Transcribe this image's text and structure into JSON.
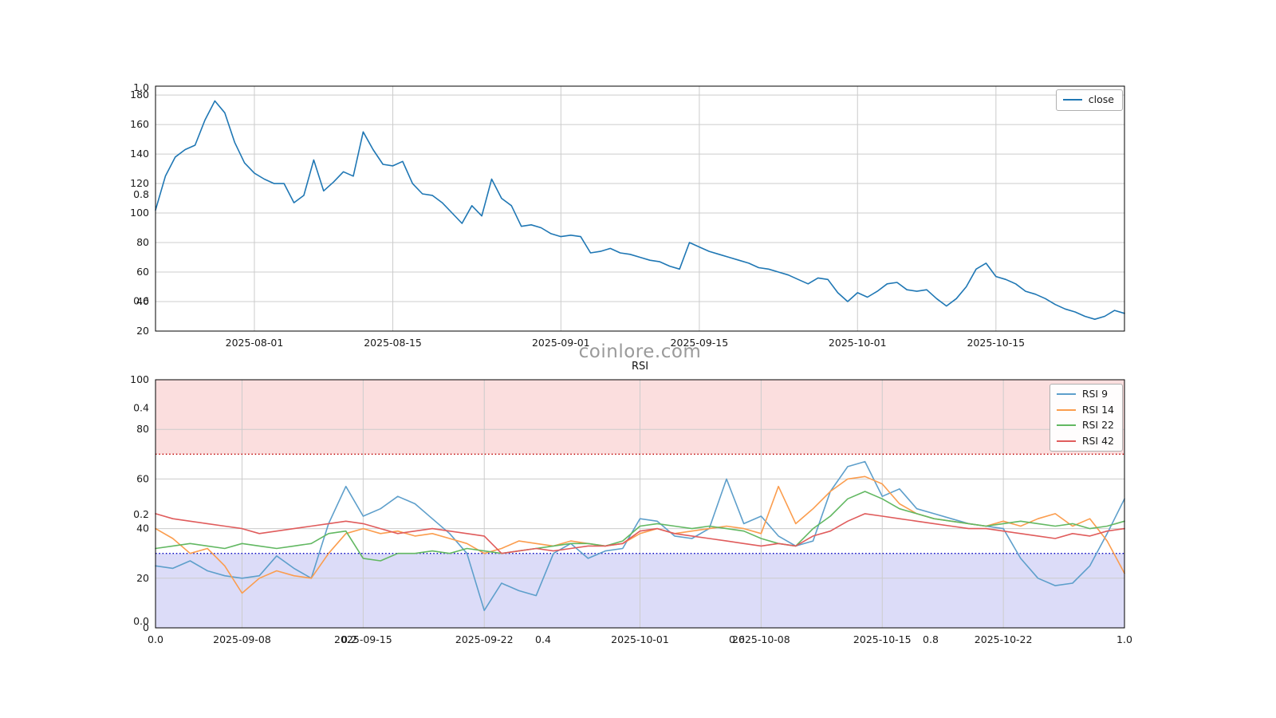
{
  "watermark": {
    "text": "coinlore.com"
  },
  "ghost_axis": {
    "y_ticks": [
      "1.0",
      "0.8",
      "0.6",
      "0.4",
      "0.2",
      "0.0"
    ],
    "x_ticks": [
      "0.0",
      "0.2",
      "0.4",
      "0.6",
      "0.8",
      "1.0"
    ]
  },
  "chart_data": [
    {
      "type": "line",
      "title": "",
      "legend_position": "upper right",
      "grid": true,
      "grid_color": "#cccccc",
      "ylim": [
        20,
        186
      ],
      "y_ticks": [
        20,
        40,
        60,
        80,
        100,
        120,
        140,
        160,
        180
      ],
      "x_ticks": [
        {
          "i": 10,
          "label": "2025-08-01"
        },
        {
          "i": 24,
          "label": "2025-08-15"
        },
        {
          "i": 41,
          "label": "2025-09-01"
        },
        {
          "i": 55,
          "label": "2025-09-15"
        },
        {
          "i": 71,
          "label": "2025-10-01"
        },
        {
          "i": 85,
          "label": "2025-10-15"
        }
      ],
      "series": [
        {
          "name": "close",
          "color": "#1f77b4",
          "values": [
            102,
            125,
            138,
            143,
            146,
            163,
            176,
            168,
            148,
            134,
            127,
            123,
            120,
            120,
            107,
            112,
            136,
            115,
            121,
            128,
            125,
            155,
            143,
            133,
            132,
            135,
            120,
            113,
            112,
            107,
            100,
            93,
            105,
            98,
            123,
            110,
            105,
            91,
            92,
            90,
            86,
            84,
            85,
            84,
            73,
            74,
            76,
            73,
            72,
            70,
            68,
            67,
            64,
            62,
            80,
            77,
            74,
            72,
            70,
            68,
            66,
            63,
            62,
            60,
            58,
            55,
            52,
            56,
            55,
            46,
            40,
            46,
            43,
            47,
            52,
            53,
            48,
            47,
            48,
            42,
            37,
            42,
            50,
            62,
            66,
            57,
            55,
            52,
            47,
            45,
            42,
            38,
            35,
            33,
            30,
            28,
            30,
            34,
            32
          ]
        }
      ]
    },
    {
      "type": "line",
      "title": "RSI",
      "legend_position": "upper right",
      "grid": true,
      "grid_color": "#cccccc",
      "ylim": [
        0,
        100
      ],
      "y_ticks": [
        0,
        20,
        40,
        60,
        80,
        100
      ],
      "x_ticks": [
        {
          "i": 5,
          "label": "2025-09-08"
        },
        {
          "i": 12,
          "label": "2025-09-15"
        },
        {
          "i": 19,
          "label": "2025-09-22"
        },
        {
          "i": 28,
          "label": "2025-10-01"
        },
        {
          "i": 35,
          "label": "2025-10-08"
        },
        {
          "i": 42,
          "label": "2025-10-15"
        },
        {
          "i": 49,
          "label": "2025-10-22"
        }
      ],
      "bands": [
        {
          "from": 70,
          "to": 100,
          "color": "#fbdede",
          "meaning": "overbought-zone"
        },
        {
          "from": 0,
          "to": 30,
          "color": "#dcdcf8",
          "meaning": "oversold-zone"
        }
      ],
      "hlines": [
        {
          "y": 70,
          "color": "#c00000",
          "style": "dotted"
        },
        {
          "y": 30,
          "color": "#0000c0",
          "style": "dotted"
        }
      ],
      "series": [
        {
          "name": "RSI 9",
          "color": "#5e9fcb",
          "values": [
            25,
            24,
            27,
            23,
            21,
            20,
            21,
            29,
            24,
            20,
            42,
            57,
            45,
            48,
            53,
            50,
            44,
            38,
            30,
            7,
            18,
            15,
            13,
            30,
            34,
            28,
            31,
            32,
            44,
            43,
            37,
            36,
            40,
            60,
            42,
            45,
            37,
            33,
            35,
            55,
            65,
            67,
            53,
            56,
            48,
            46,
            44,
            42,
            41,
            40,
            28,
            20,
            17,
            18,
            25,
            38,
            52
          ]
        },
        {
          "name": "RSI 14",
          "color": "#fb9d4e",
          "values": [
            40,
            36,
            30,
            32,
            25,
            14,
            20,
            23,
            21,
            20,
            30,
            38,
            40,
            38,
            39,
            37,
            38,
            36,
            34,
            30,
            32,
            35,
            34,
            33,
            35,
            34,
            33,
            34,
            38,
            40,
            38,
            39,
            40,
            41,
            40,
            38,
            57,
            42,
            48,
            55,
            60,
            61,
            58,
            50,
            46,
            44,
            43,
            42,
            41,
            43,
            41,
            44,
            46,
            41,
            44,
            35,
            22
          ]
        },
        {
          "name": "RSI 22",
          "color": "#62b862",
          "values": [
            32,
            33,
            34,
            33,
            32,
            34,
            33,
            32,
            33,
            34,
            38,
            39,
            28,
            27,
            30,
            30,
            31,
            30,
            32,
            31,
            30,
            31,
            32,
            33,
            34,
            34,
            33,
            35,
            41,
            42,
            41,
            40,
            41,
            40,
            39,
            36,
            34,
            33,
            40,
            45,
            52,
            55,
            52,
            48,
            46,
            44,
            43,
            42,
            41,
            42,
            43,
            42,
            41,
            42,
            40,
            41,
            43
          ]
        },
        {
          "name": "RSI 42",
          "color": "#e05c5c",
          "values": [
            46,
            44,
            43,
            42,
            41,
            40,
            38,
            39,
            40,
            41,
            42,
            43,
            42,
            40,
            38,
            39,
            40,
            39,
            38,
            37,
            30,
            31,
            32,
            31,
            32,
            33,
            33,
            34,
            39,
            40,
            38,
            37,
            36,
            35,
            34,
            33,
            34,
            33,
            37,
            39,
            43,
            46,
            45,
            44,
            43,
            42,
            41,
            40,
            40,
            39,
            38,
            37,
            36,
            38,
            37,
            39,
            40
          ]
        }
      ]
    }
  ]
}
